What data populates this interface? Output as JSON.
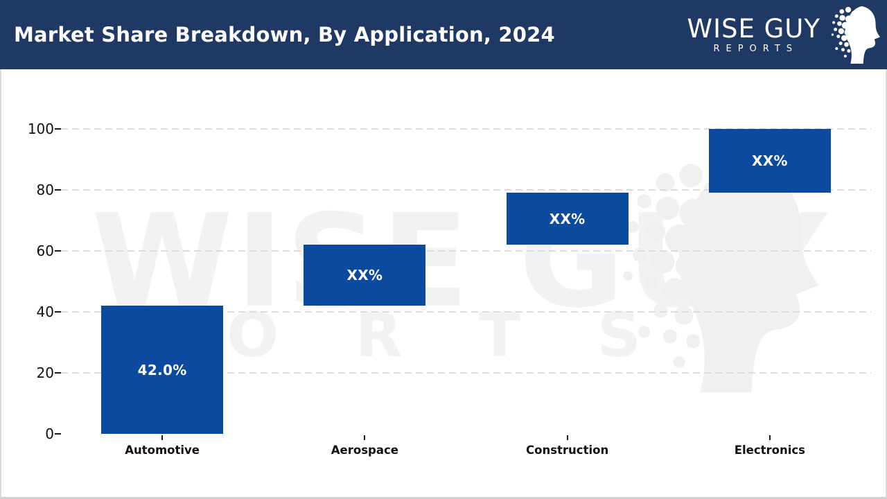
{
  "header": {
    "title": "Market Share Breakdown, By Application, 2024",
    "logo": {
      "line1": "WISE GUY",
      "line2": "REPORTS"
    }
  },
  "watermark": {
    "line1": "WISE GUY",
    "line2": "P O R T S"
  },
  "colors": {
    "header_bg": "#203864",
    "bar": "#0b4a9e",
    "axis": "#1a1a1a",
    "grid": "#dcdcdc",
    "watermark": "#f2f2f2",
    "bar_label": "#ffffff"
  },
  "chart_data": {
    "type": "bar",
    "subtype": "waterfall",
    "title": "Market Share Breakdown, By Application, 2024",
    "categories": [
      "Automotive",
      "Aerospace",
      "Construction",
      "Electronics"
    ],
    "bars": [
      {
        "category": "Automotive",
        "start": 0,
        "end": 42,
        "label": "42.0%"
      },
      {
        "category": "Aerospace",
        "start": 42,
        "end": 62,
        "label": "XX%"
      },
      {
        "category": "Construction",
        "start": 62,
        "end": 79,
        "label": "XX%"
      },
      {
        "category": "Electronics",
        "start": 79,
        "end": 100,
        "label": "XX%"
      }
    ],
    "xlabel": "",
    "ylabel": "",
    "ylim": [
      0,
      100
    ],
    "yticks": [
      0,
      20,
      40,
      60,
      80,
      100
    ],
    "grid": "horizontal-dashed",
    "legend": "none"
  }
}
